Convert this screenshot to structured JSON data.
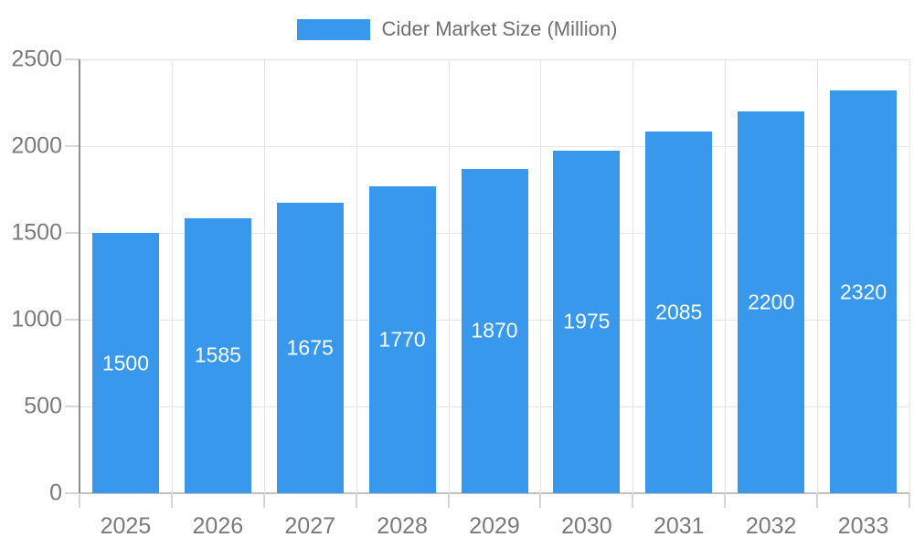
{
  "chart_data": {
    "type": "bar",
    "title": "",
    "legend": {
      "label": "Cider Market Size (Million)",
      "position": "top"
    },
    "categories": [
      "2025",
      "2026",
      "2027",
      "2028",
      "2029",
      "2030",
      "2031",
      "2032",
      "2033"
    ],
    "series": [
      {
        "name": "Cider Market Size (Million)",
        "values": [
          1500,
          1585,
          1675,
          1770,
          1870,
          1975,
          2085,
          2200,
          2320
        ]
      }
    ],
    "value_labels": [
      "1500",
      "1585",
      "1675",
      "1770",
      "1870",
      "1975",
      "2085",
      "2200",
      "2320"
    ],
    "xlabel": "",
    "ylabel": "",
    "ylim": [
      0,
      2500
    ],
    "yticks": [
      0,
      500,
      1000,
      1500,
      2000,
      2500
    ],
    "ytick_labels": [
      "0",
      "500",
      "1000",
      "1500",
      "2000",
      "2500"
    ],
    "grid": true,
    "legend_position": "top",
    "colors": {
      "bar": "#3899EC",
      "gridline": "#e6e6e6",
      "tick": "#d6d6d6",
      "y_axis_border": "#8c8c8c",
      "x_baseline": "#c2c2c2",
      "axis_text": "#7a7a7a",
      "legend_text": "#6f6f6f",
      "value_label_text": "#ffffff",
      "background": "#ffffff"
    }
  }
}
